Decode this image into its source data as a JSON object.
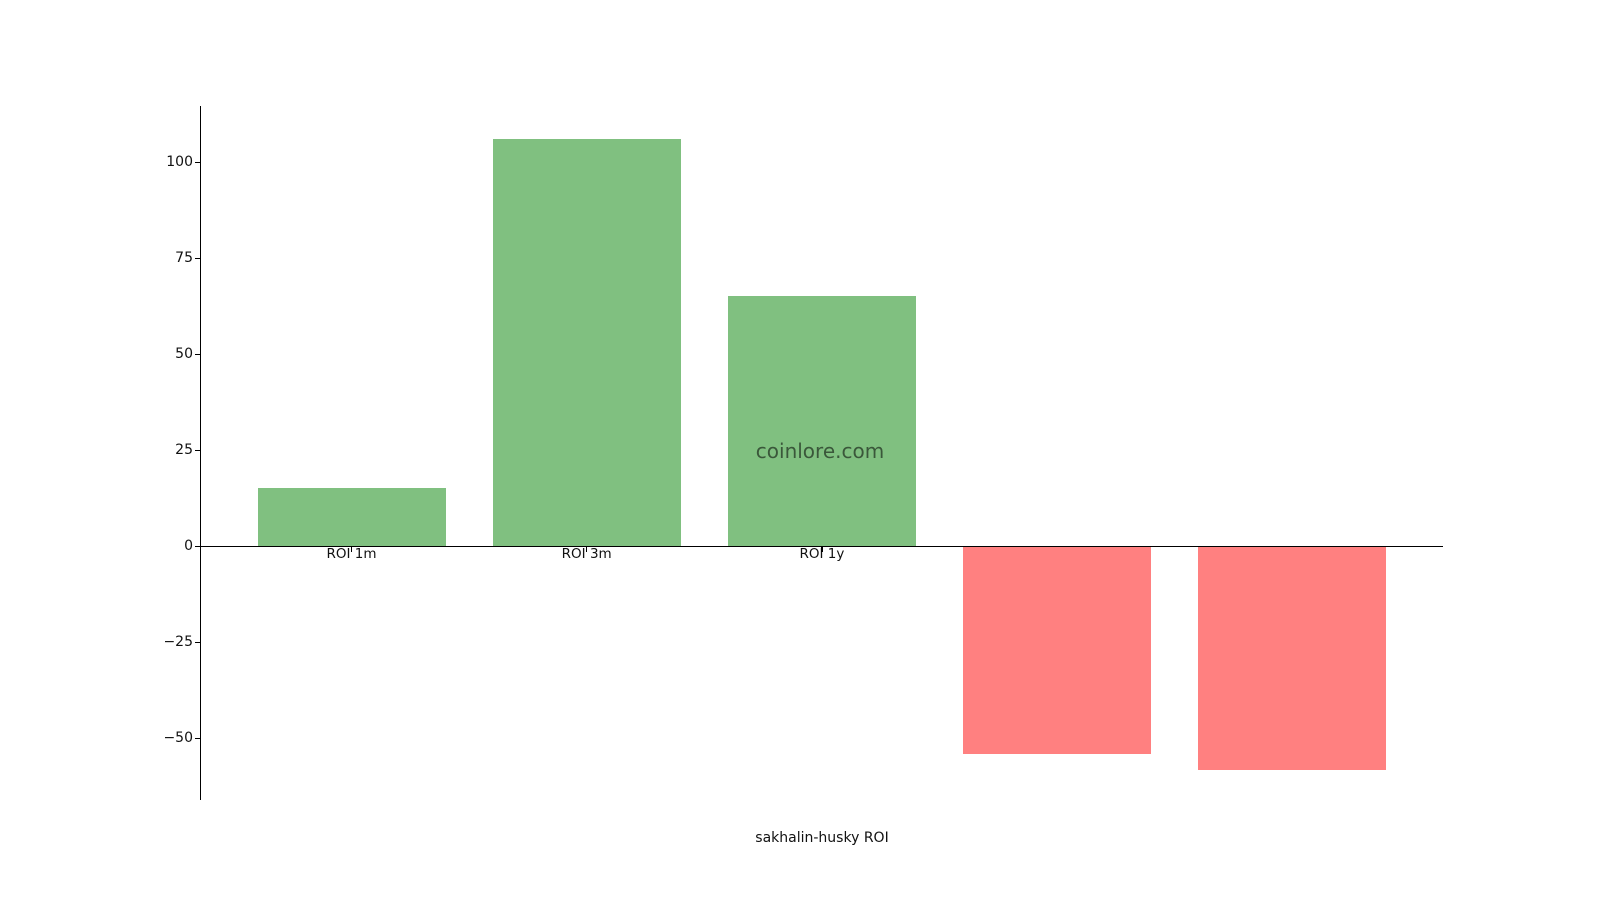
{
  "watermark": {
    "text": "coinlore.com"
  },
  "chart_data": {
    "type": "bar",
    "title": "sakhalin-husky ROI",
    "title_position": "bottom",
    "xlabel": "sakhalin-husky ROI",
    "ylabel": "",
    "categories": [
      "ROI 1m",
      "ROI 3m",
      "ROI 1y",
      "",
      ""
    ],
    "values": [
      15,
      106,
      65,
      -54,
      -58
    ],
    "bar_colors": [
      "#80c080",
      "#80c080",
      "#80c080",
      "#ff8080",
      "#ff8080"
    ],
    "positive_color": "#80c080",
    "negative_color": "#ff8080",
    "axis_color": "#000000",
    "yticks": [
      100,
      75,
      50,
      25,
      0,
      -25,
      -50
    ],
    "ylim": [
      -66,
      114
    ],
    "grid": false,
    "legend": false,
    "watermark": "coinlore.com",
    "note_hidden_labels": "x tick labels of the two negative bars are occluded by the red bars"
  }
}
